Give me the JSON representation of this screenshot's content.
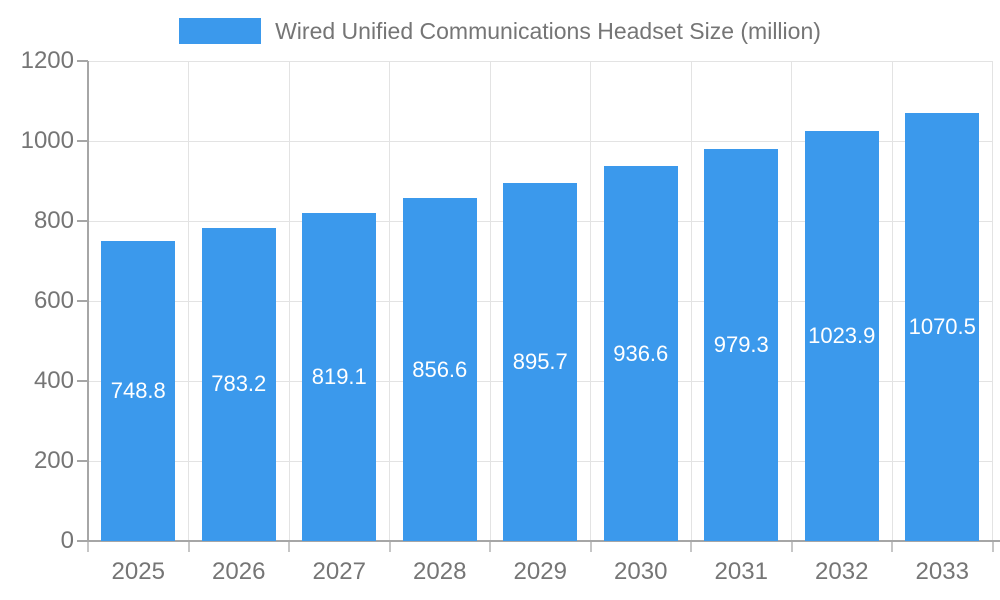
{
  "chart_data": {
    "type": "bar",
    "title": "Wired Unified Communications Headset Size (million)",
    "legend_position": "top",
    "categories": [
      "2025",
      "2026",
      "2027",
      "2028",
      "2029",
      "2030",
      "2031",
      "2032",
      "2033"
    ],
    "series": [
      {
        "name": "Wired Unified Communications Headset Size (million)",
        "values": [
          748.8,
          783.2,
          819.1,
          856.6,
          895.7,
          936.6,
          979.3,
          1023.9,
          1070.5
        ]
      }
    ],
    "xlabel": "",
    "ylabel": "",
    "ylim": [
      0,
      1200
    ],
    "yticks": [
      0,
      200,
      400,
      600,
      800,
      1000,
      1200
    ],
    "grid": "horizontal and vertical gridlines on",
    "value_labels": "centered at mid-height of each bar"
  },
  "colors": {
    "bar": "#3b99ec",
    "axis_text": "#757575",
    "gridline": "#e3e3e3",
    "axis_line": "#a6a6a6",
    "x_tick": "#c6c6c6",
    "value_label": "#ffffff",
    "background": "#ffffff"
  }
}
